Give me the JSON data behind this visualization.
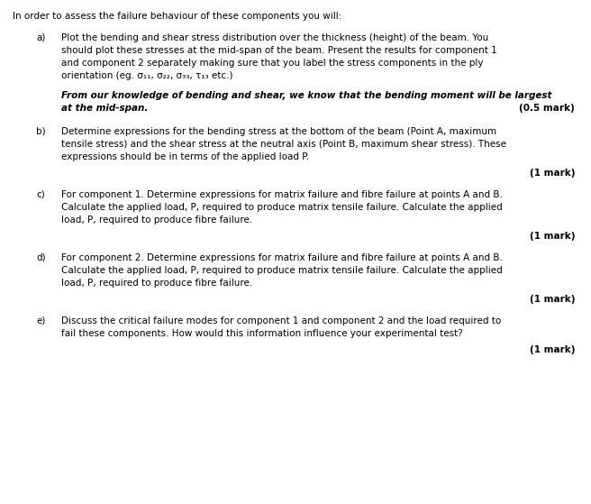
{
  "bg_color": "#ffffff",
  "text_color": "#000000",
  "figsize": [
    6.56,
    5.59
  ],
  "dpi": 100,
  "font_family": "DejaVu Sans",
  "fs_main": 7.5,
  "intro": "In order to assess the failure behaviour of these components you will:",
  "items": [
    {
      "label": "a)",
      "body_lines": [
        "Plot the bending and shear stress distribution over the thickness (height) of the beam. You",
        "should plot these stresses at the mid-span of the beam. Present the results for component 1",
        "and component 2 separately making sure that you label the stress components in the ply",
        "orientation (eg. σ₁₁, σ₂₂, σ₃₃, τ₁₃ etc.)"
      ],
      "note_lines": [
        "From our knowledge of bending and shear, we know that the bending moment will be largest",
        "at the mid-span."
      ],
      "note_mark": "(0.5 mark)",
      "mark": null
    },
    {
      "label": "b)",
      "body_lines": [
        "Determine expressions for the bending stress at the bottom of the beam (Point A, maximum",
        "tensile stress) and the shear stress at the neutral axis (Point B, maximum shear stress). These",
        "expressions should be in terms of the applied load P."
      ],
      "note_lines": null,
      "note_mark": null,
      "mark": "(1 mark)"
    },
    {
      "label": "c)",
      "body_lines": [
        "For component 1. Determine expressions for matrix failure and fibre failure at points A and B.",
        "Calculate the applied load, P, required to produce matrix tensile failure. Calculate the applied",
        "load, P, required to produce fibre failure."
      ],
      "note_lines": null,
      "note_mark": null,
      "mark": "(1 mark)"
    },
    {
      "label": "d)",
      "body_lines": [
        "For component 2. Determine expressions for matrix failure and fibre failure at points A and B.",
        "Calculate the applied load, P, required to produce matrix tensile failure. Calculate the applied",
        "load, P, required to produce fibre failure."
      ],
      "note_lines": null,
      "note_mark": null,
      "mark": "(1 mark)"
    },
    {
      "label": "e)",
      "body_lines": [
        "Discuss the critical failure modes for component 1 and component 2 and the load required to",
        "fail these components. How would this information influence your experimental test?"
      ],
      "note_lines": null,
      "note_mark": null,
      "mark": "(1 mark)"
    }
  ]
}
